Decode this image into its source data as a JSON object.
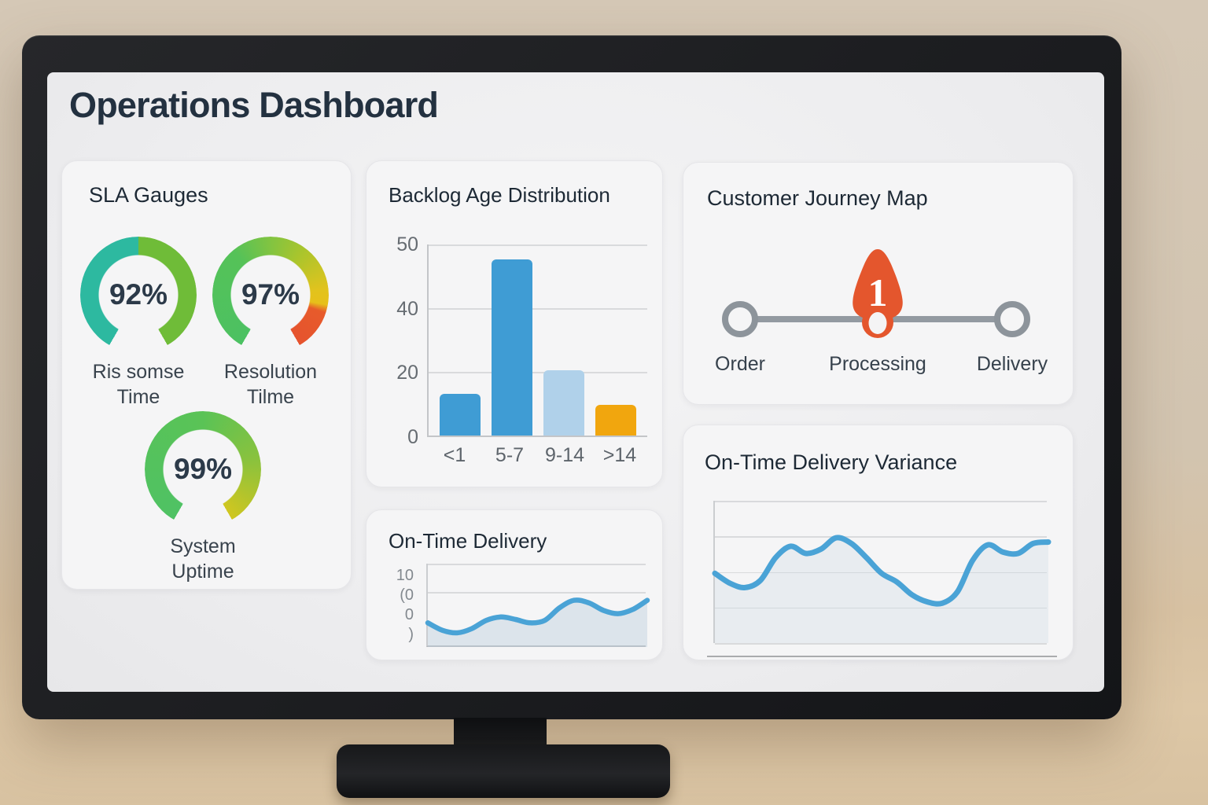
{
  "title": "Operations Dashboard",
  "cards": {
    "sla": {
      "title": "SLA Gauges"
    },
    "backlog": {
      "title": "Backlog Age Distribution"
    },
    "journey": {
      "title": "Customer Journey Map",
      "stages": [
        "Order",
        "Processing",
        "Delivery"
      ],
      "alert_count": "1"
    },
    "ontime": {
      "title": "On-Time Delivery"
    },
    "variance": {
      "title": "On-Time Delivery Variance"
    }
  },
  "chart_data": [
    {
      "id": "sla-gauges",
      "type": "gauge",
      "title": "SLA Gauges",
      "gauges": [
        {
          "value": 92,
          "display": "92%",
          "label_lines": [
            "Ris somse",
            "Time"
          ],
          "arc_stops": [
            [
              "#2db9a0",
              0
            ],
            [
              "#2db9a0",
              150
            ],
            [
              "#6fbc38",
              150
            ],
            [
              "#6fbc38",
              300
            ]
          ]
        },
        {
          "value": 97,
          "display": "97%",
          "label_lines": [
            "Resolution",
            "Tilme"
          ],
          "arc_stops": [
            [
              "#4cc162",
              0
            ],
            [
              "#55c258",
              110
            ],
            [
              "#a8c52d",
              185
            ],
            [
              "#e2c31d",
              235
            ],
            [
              "#e7c01a",
              250
            ],
            [
              "#e75b2b",
              258
            ],
            [
              "#e6532e",
              300
            ]
          ]
        },
        {
          "value": 99,
          "display": "99%",
          "label_lines": [
            "System",
            "Uptime"
          ],
          "arc_stops": [
            [
              "#4fc264",
              0
            ],
            [
              "#5ac356",
              150
            ],
            [
              "#8ac23d",
              230
            ],
            [
              "#d0c620",
              300
            ]
          ]
        }
      ]
    },
    {
      "id": "backlog",
      "type": "bar",
      "title": "Backlog Age Distribution",
      "categories": [
        "<1",
        "5-7",
        "9-14",
        ">14"
      ],
      "values": [
        11,
        46,
        17,
        8
      ],
      "bar_colors": [
        "#3f9cd4",
        "#3f9cd4",
        "#b0d1ea",
        "#f1a60e"
      ],
      "y_ticks": [
        "50",
        "40",
        "20",
        "0"
      ],
      "ylim": [
        0,
        50
      ],
      "grid": true
    },
    {
      "id": "journey",
      "type": "journey",
      "title": "Customer Journey Map",
      "stages": [
        "Order",
        "Processing",
        "Delivery"
      ],
      "alert": {
        "stage": "Processing",
        "count": 1
      },
      "accent_color": "#e4562d",
      "node_color": "#8d949b"
    },
    {
      "id": "ontime",
      "type": "area",
      "title": "On-Time Delivery",
      "y_ticks": [
        "10",
        "(0",
        "0",
        ")"
      ],
      "values": [
        2.9,
        2.0,
        1.7,
        2.2,
        3.2,
        3.6,
        3.3,
        2.9,
        3.2,
        4.7,
        5.6,
        5.3,
        4.4,
        4.0,
        4.5,
        5.6
      ],
      "ylim": [
        0,
        10
      ],
      "line_color": "#4aa3d6",
      "fill_color": "rgba(190,208,222,0.45)"
    },
    {
      "id": "variance",
      "type": "line",
      "title": "On-Time Delivery Variance",
      "values": [
        4.9,
        4.2,
        3.9,
        4.4,
        6.0,
        6.8,
        6.3,
        6.6,
        7.4,
        7.0,
        6.0,
        4.9,
        4.3,
        3.4,
        2.9,
        2.8,
        3.6,
        5.8,
        6.9,
        6.4,
        6.3,
        7.0,
        7.1
      ],
      "ylim": [
        0,
        10
      ],
      "line_color": "#4aa3d6",
      "fill_color": "rgba(195,212,224,0.25)"
    }
  ]
}
